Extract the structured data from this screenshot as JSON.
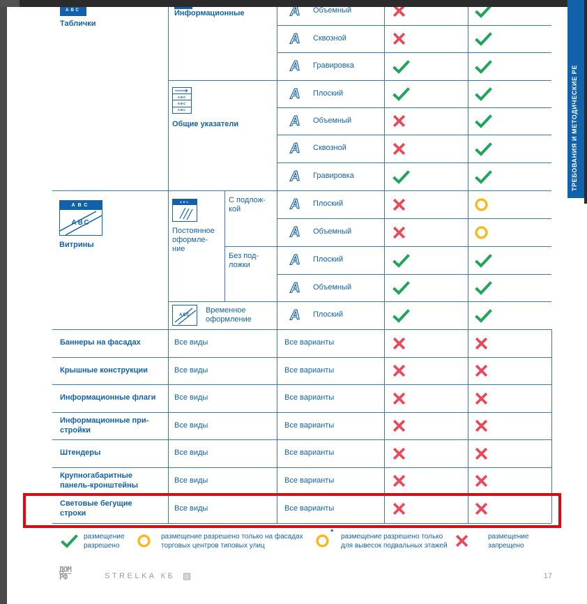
{
  "side_banner": "ТРЕБОВАНИЯ И МЕТОДИЧЕСКИЕ РЕ",
  "icons": {
    "abc": "АВС"
  },
  "colors": {
    "accent_blue": "#1161ab",
    "check_green": "#22a55b",
    "cross_red": "#e9495a",
    "circle_yellow": "#f8b81c",
    "highlight_red": "#e30613"
  },
  "table": {
    "categories": [
      {
        "label": "Таблички",
        "icon": "plaque-icon"
      },
      {
        "label": "Витрины",
        "icon": "showcase-icon"
      }
    ],
    "subcategories": [
      {
        "label": "Информационные",
        "icon": "info-plaque-icon"
      },
      {
        "label": "Общие указатели",
        "icon": "general-signs-icon"
      },
      {
        "label": "Постоянное\nоформле-\nние",
        "icon": "permanent-design-icon"
      },
      {
        "label": "Временное\nоформление",
        "icon": "temporary-design-icon"
      }
    ],
    "sub_headers": [
      {
        "label": "С подлож-\nкой"
      },
      {
        "label": "Без под-\nложки"
      }
    ],
    "type_rows": [
      {
        "icon": "volume-letter-icon",
        "label": "Объемный",
        "marks": [
          "cross",
          "check"
        ]
      },
      {
        "icon": "through-letter-icon",
        "label": "Сквозной",
        "marks": [
          "cross",
          "check"
        ]
      },
      {
        "icon": "engraved-letter-icon",
        "label": "Гравировка",
        "marks": [
          "check",
          "check"
        ]
      },
      {
        "icon": "flat-letter-icon",
        "label": "Плоский",
        "marks": [
          "check",
          "check"
        ]
      },
      {
        "icon": "volume-letter-icon",
        "label": "Объемный",
        "marks": [
          "cross",
          "check"
        ]
      },
      {
        "icon": "through-letter-icon",
        "label": "Сквозной",
        "marks": [
          "cross",
          "check"
        ]
      },
      {
        "icon": "engraved-letter-icon",
        "label": "Гравировка",
        "marks": [
          "check",
          "check"
        ]
      },
      {
        "icon": "flat-letter-icon",
        "label": "Плоский",
        "marks": [
          "cross",
          "circle"
        ]
      },
      {
        "icon": "volume-letter-icon",
        "label": "Объемный",
        "marks": [
          "cross",
          "circle"
        ]
      },
      {
        "icon": "flat-letter-icon",
        "label": "Плоский",
        "marks": [
          "check",
          "check"
        ]
      },
      {
        "icon": "volume-letter-icon",
        "label": "Объемный",
        "marks": [
          "check",
          "check"
        ]
      },
      {
        "icon": "flat-letter-icon",
        "label": "Плоский",
        "marks": [
          "check",
          "check"
        ]
      }
    ],
    "simple_rows": [
      {
        "category": "Баннеры на фасадах",
        "kind": "Все виды",
        "variant": "Все варианты",
        "marks": [
          "cross",
          "cross"
        ],
        "highlighted": false
      },
      {
        "category": "Крышные конструкции",
        "kind": "Все виды",
        "variant": "Все варианты",
        "marks": [
          "cross",
          "cross"
        ],
        "highlighted": false
      },
      {
        "category": "Информационные флаги",
        "kind": "Все виды",
        "variant": "Все варианты",
        "marks": [
          "cross",
          "cross"
        ],
        "highlighted": false
      },
      {
        "category": "Информационные при-\nстройки",
        "kind": "Все виды",
        "variant": "Все варианты",
        "marks": [
          "cross",
          "cross"
        ],
        "highlighted": false
      },
      {
        "category": "Штендеры",
        "kind": "Все виды",
        "variant": "Все варианты",
        "marks": [
          "cross",
          "cross"
        ],
        "highlighted": false
      },
      {
        "category": "Крупногабаритные\nпанель-кронштейны",
        "kind": "Все виды",
        "variant": "Все варианты",
        "marks": [
          "cross",
          "cross"
        ],
        "highlighted": false
      },
      {
        "category": "Световые бегущие\nстроки",
        "kind": "Все виды",
        "variant": "Все варианты",
        "marks": [
          "cross",
          "cross"
        ],
        "highlighted": true
      }
    ]
  },
  "legend": [
    {
      "mark": "check",
      "text": "размещение\nразрешено"
    },
    {
      "mark": "circle",
      "text": "размещение разрешено только на фасадах\nторговых центров типовых улиц"
    },
    {
      "mark": "circle-asterisk",
      "text": "размещение разрешено только\nдля вывесок подвальных этажей"
    },
    {
      "mark": "cross",
      "text": "размещение\nзапрещено"
    }
  ],
  "footer": {
    "logo_line1": "ДОМ",
    "logo_line2": "РФ",
    "brand": "STRELKA КБ",
    "page_number": "17"
  }
}
